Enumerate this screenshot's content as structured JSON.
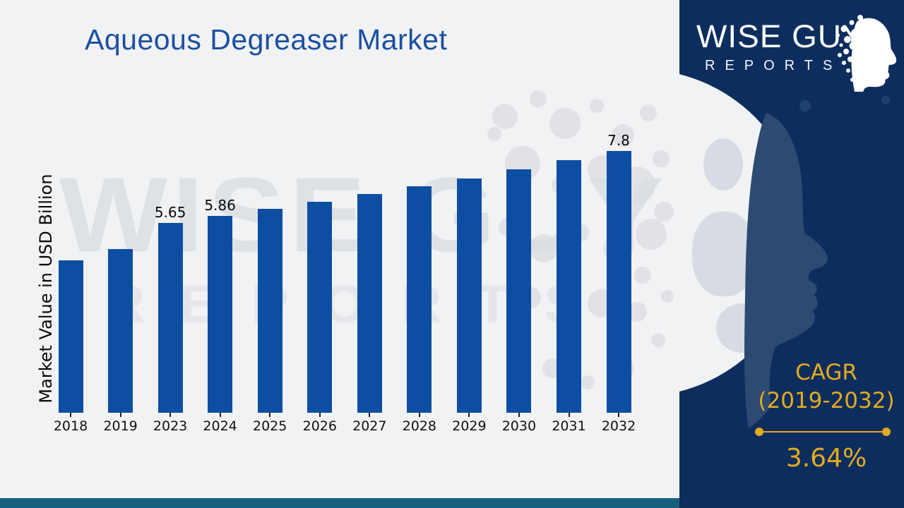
{
  "title": "Aqueous Degreaser Market",
  "y_axis_label": "Market Value in USD Billion",
  "background_watermark": {
    "line1": "WISE GUY",
    "line2": "REPORTS"
  },
  "brand": {
    "line1": "WISE GUY",
    "line2": "REPORTS"
  },
  "cagr_panel": {
    "label": "CAGR",
    "range": "(2019-2032)",
    "value": "3.64%"
  },
  "colors": {
    "background": "#f1f2f3",
    "bar": "#0d4ea3",
    "title": "#1b4fa0",
    "panel_navy": "#0d2d5e",
    "face_silhouette": "#2c4a72",
    "accent_yellow": "#e3ac1e",
    "teal_strip": "#19607f"
  },
  "chart_data": {
    "type": "bar",
    "title": "Aqueous Degreaser Market",
    "xlabel": "",
    "ylabel": "Market Value in USD Billion",
    "unit": "USD Billion",
    "categories": [
      "2018",
      "2019",
      "2023",
      "2024",
      "2025",
      "2026",
      "2027",
      "2028",
      "2029",
      "2030",
      "2031",
      "2032"
    ],
    "values": [
      4.55,
      4.87,
      5.65,
      5.86,
      6.07,
      6.29,
      6.51,
      6.74,
      6.99,
      7.25,
      7.52,
      7.8
    ],
    "value_labels": {
      "2023": "5.65",
      "2024": "5.86",
      "2032": "7.8"
    },
    "ylim": [
      0,
      8.2
    ],
    "grid": false,
    "legend": false,
    "bar_color": "#0d4ea3"
  }
}
